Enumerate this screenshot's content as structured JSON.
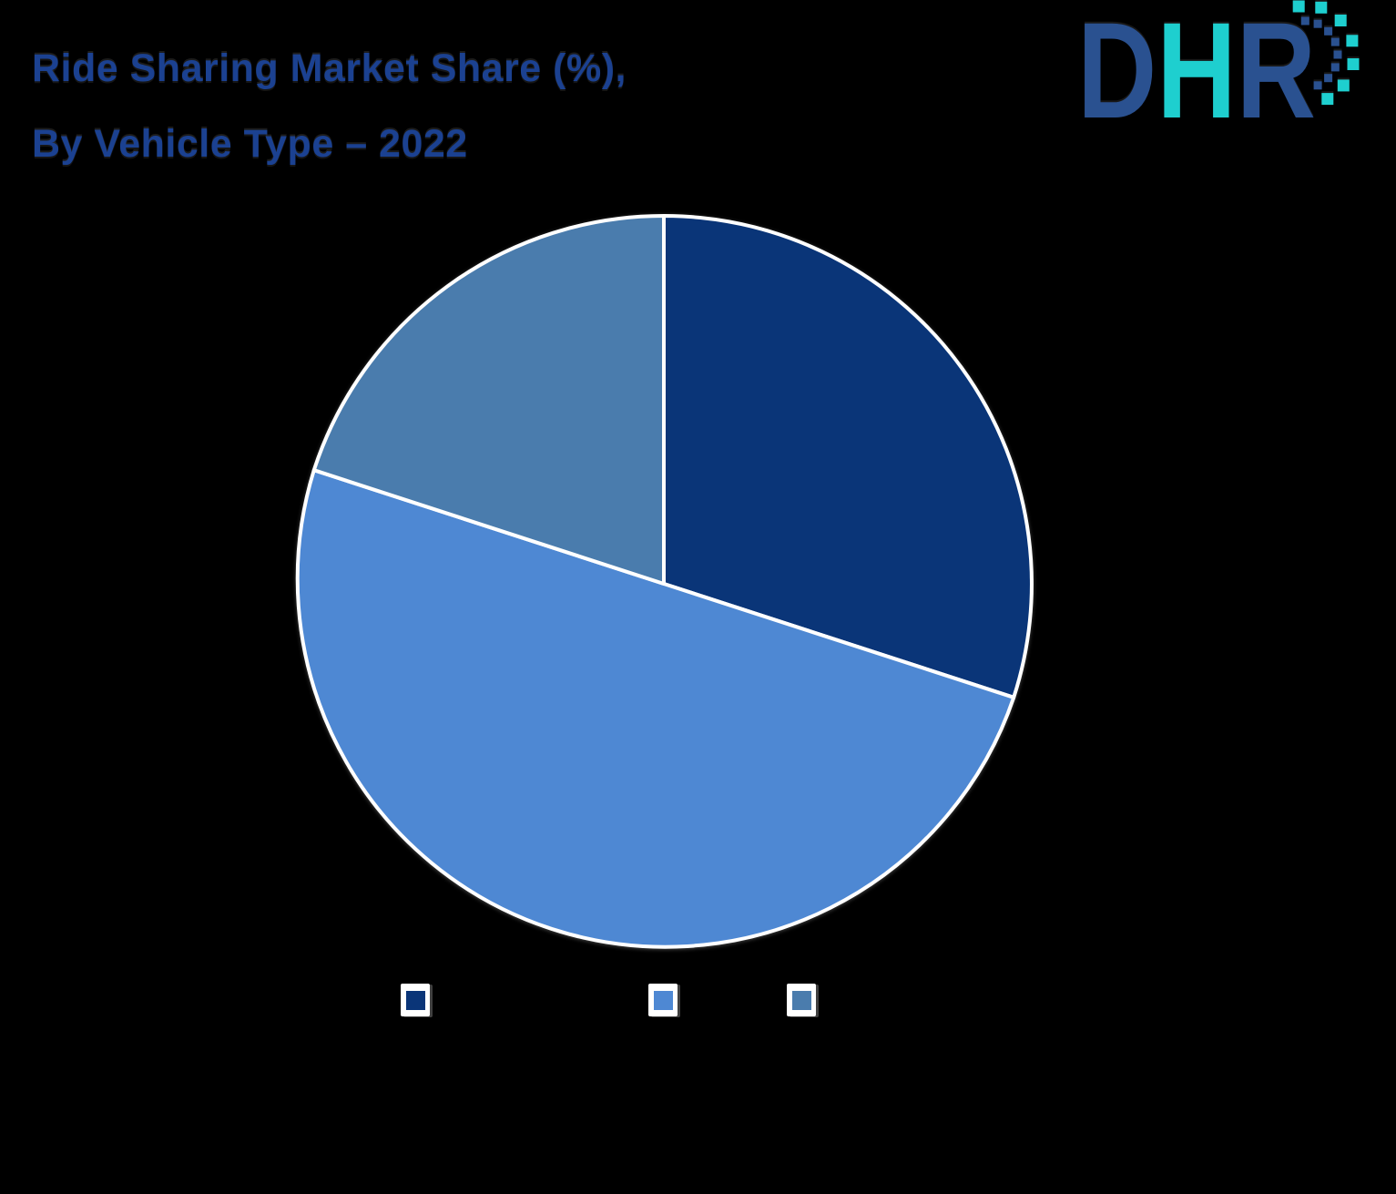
{
  "page": {
    "background": "#000000"
  },
  "header": {
    "title_line1": "Ride Sharing Market Share (%),",
    "title_line2": "By Vehicle Type – 2022",
    "title_color": "#1b4191"
  },
  "logo": {
    "name": "DHR",
    "letters": {
      "d": "D",
      "h": "H",
      "r": "R"
    },
    "letter_colors": {
      "d": "#2a5190",
      "h": "#1ecfcf",
      "r": "#2a5190"
    },
    "dot_colors": {
      "inner": "#2a5190",
      "outer": "#1ecfcf"
    }
  },
  "chart_data": {
    "type": "pie",
    "title": "Ride Sharing Market Share (%), By Vehicle Type – 2022",
    "start_angle": "12-oclock",
    "direction": "clockwise",
    "slice_border_color": "#ffffff",
    "segments": [
      {
        "label": "",
        "value": 30,
        "color": "#0a3578"
      },
      {
        "label": "",
        "value": 50,
        "color": "#4e88d3"
      },
      {
        "label": "",
        "value": 20,
        "color": "#4a7cad"
      }
    ],
    "legend_position": "bottom",
    "legend_labels_visible": false,
    "legend_swatch_x": [
      440,
      712,
      864
    ]
  }
}
